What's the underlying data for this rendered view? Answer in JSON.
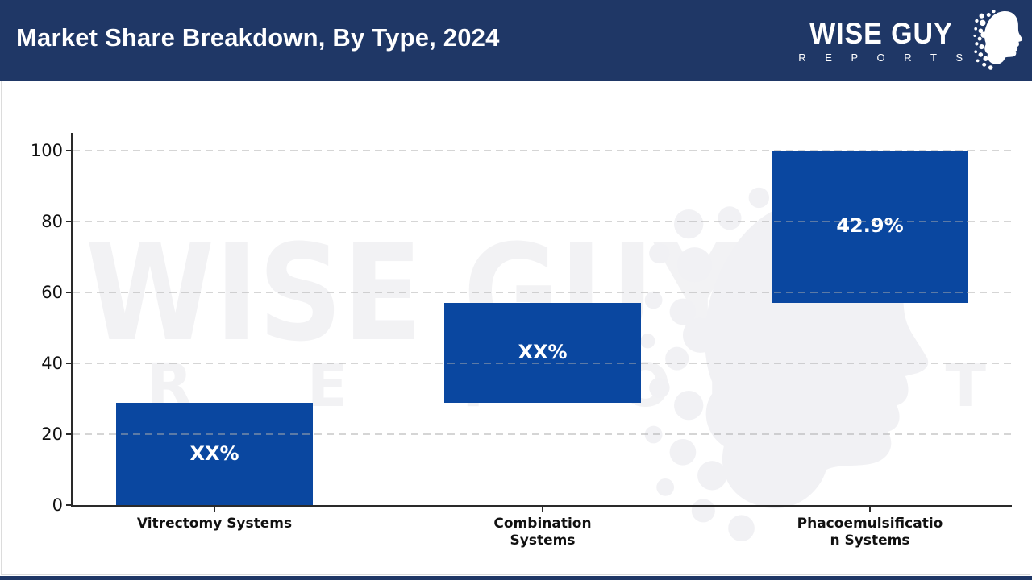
{
  "header": {
    "title": "Market Share Breakdown, By Type, 2024",
    "logo": {
      "line1": "WISE GUY",
      "line2": "R E P O R T S"
    }
  },
  "watermark": {
    "line1": "WISE GUY",
    "line2": "R E P O R T S"
  },
  "chart_data": {
    "type": "bar",
    "variant": "waterfall",
    "title": "Market Share Breakdown, By Type, 2024",
    "categories": [
      {
        "lines": [
          "Vitrectomy Systems"
        ]
      },
      {
        "lines": [
          "Combination",
          "Systems"
        ]
      },
      {
        "lines": [
          "Phacoemulsificatio",
          "n Systems"
        ]
      }
    ],
    "segments": [
      {
        "category": "Vitrectomy Systems",
        "start": 0,
        "end": 28.8,
        "label": "XX%"
      },
      {
        "category": "Combination Systems",
        "start": 28.8,
        "end": 57.1,
        "label": "XX%"
      },
      {
        "category": "Phacoemulsification Systems",
        "start": 57.1,
        "end": 100,
        "label": "42.9%"
      }
    ],
    "ylim": [
      0,
      100
    ],
    "yticks": [
      0,
      20,
      40,
      60,
      80,
      100
    ],
    "grid": "horizontal-dashed",
    "legend": "none"
  },
  "colors": {
    "header_bg": "#1F3766",
    "footer_bg": "#1F3766",
    "bar": "#0A47A0",
    "bar_label": "#FFFFFF",
    "axis": "#2A2A2A",
    "watermark": "#F2F2F4"
  }
}
